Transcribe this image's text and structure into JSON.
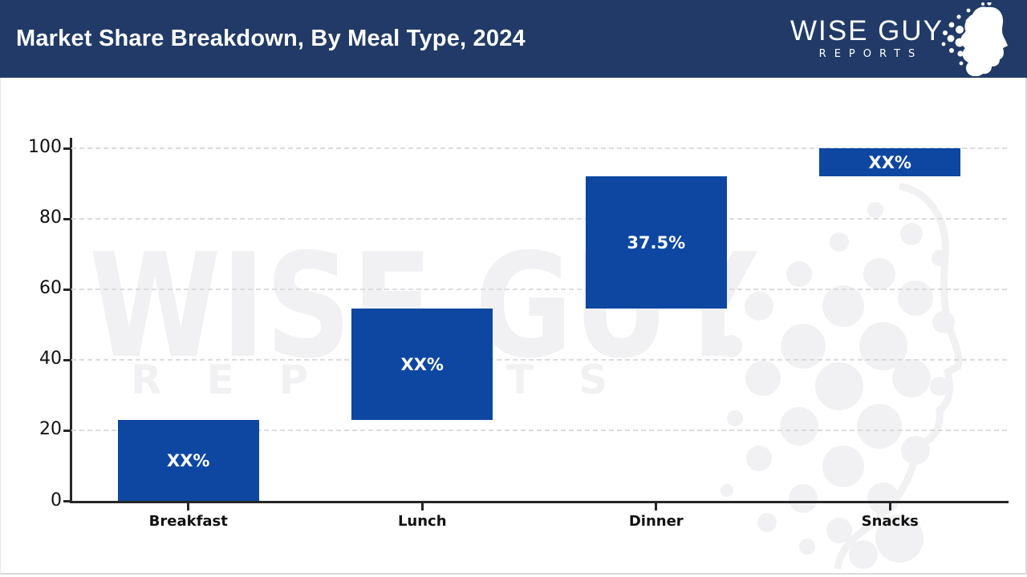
{
  "header": {
    "title": "Market Share Breakdown, By Meal Type, 2024"
  },
  "logo": {
    "line1": "WISE GUY",
    "line2": "REPORTS"
  },
  "watermark": {
    "line1": "WISE GUY",
    "line2": "REPORTS"
  },
  "chart_data": {
    "type": "bar",
    "subtype": "waterfall-floating-bars",
    "title": "Market Share Breakdown, By Meal Type, 2024",
    "categories": [
      "Breakfast",
      "Lunch",
      "Dinner",
      "Snacks"
    ],
    "segments": [
      {
        "category": "Breakfast",
        "start": 0,
        "end": 23,
        "value": 23,
        "label": "XX%"
      },
      {
        "category": "Lunch",
        "start": 23,
        "end": 54.5,
        "value": 31.5,
        "label": "XX%"
      },
      {
        "category": "Dinner",
        "start": 54.5,
        "end": 92,
        "value": 37.5,
        "label": "37.5%"
      },
      {
        "category": "Snacks",
        "start": 92,
        "end": 100,
        "value": 8,
        "label": "XX%"
      }
    ],
    "xlabel": "",
    "ylabel": "",
    "ylim": [
      0,
      100
    ],
    "yticks": [
      0,
      20,
      40,
      60,
      80,
      100
    ],
    "grid": "horizontal-dashed",
    "legend": "none",
    "bar_color": "#0d47a1",
    "bar_label_color": "#ffffff",
    "axis_color": "#262626",
    "gridline_color": "#dcdcdc"
  },
  "colors": {
    "header_bg": "#213a67",
    "header_text": "#ffffff",
    "chart_bg": "#ffffff",
    "watermark": "#f1f1f3",
    "border": "#d9d9d9"
  }
}
